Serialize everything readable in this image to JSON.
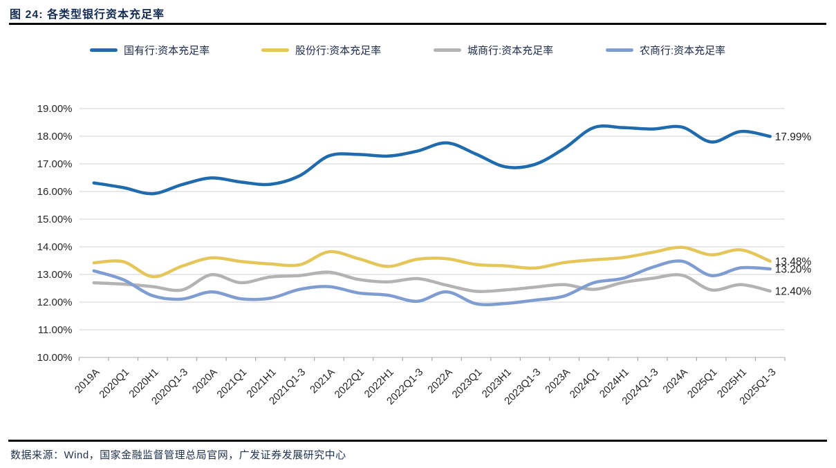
{
  "figure": {
    "title": "图 24: 各类型银行资本充足率",
    "source": "数据来源：Wind，国家金融监督管理总局官网，广发证券发展研究中心"
  },
  "legend": [
    {
      "label": "国有行:资本充足率",
      "color": "#1F6BAD"
    },
    {
      "label": "股份行:资本充足率",
      "color": "#E4C65B"
    },
    {
      "label": "城商行:资本充足率",
      "color": "#B3B3B3"
    },
    {
      "label": "农商行:资本充足率",
      "color": "#7F9DD1"
    }
  ],
  "chart_data": {
    "type": "line",
    "title": "各类型银行资本充足率",
    "xlabel": "",
    "ylabel": "",
    "unit": "%",
    "ylim": [
      10,
      19
    ],
    "ytick_step": 1,
    "grid": "horizontal",
    "legend_position": "top",
    "smooth": true,
    "ytick_labels": [
      "19.00%",
      "18.00%",
      "17.00%",
      "16.00%",
      "15.00%",
      "14.00%",
      "13.00%",
      "12.00%",
      "11.00%",
      "10.00%"
    ],
    "categories": [
      "2019A",
      "2020Q1",
      "2020H1",
      "2020Q1-3",
      "2020A",
      "2021Q1",
      "2021H1",
      "2021Q1-3",
      "2021A",
      "2022Q1",
      "2022H1",
      "2022Q1-3",
      "2022A",
      "2023Q1",
      "2023H1",
      "2023Q1-3",
      "2023A",
      "2024Q1",
      "2024H1",
      "2024Q1-3",
      "2024A",
      "2025Q1",
      "2025H1",
      "2025Q1-3"
    ],
    "series": [
      {
        "name": "国有行:资本充足率",
        "color": "#1F6BAD",
        "end_label": "17.99%",
        "values": [
          16.31,
          16.14,
          15.92,
          16.25,
          16.49,
          16.34,
          16.26,
          16.57,
          17.29,
          17.34,
          17.28,
          17.46,
          17.76,
          17.35,
          16.89,
          16.98,
          17.56,
          18.31,
          18.31,
          18.26,
          18.33,
          17.79,
          18.17,
          17.99
        ]
      },
      {
        "name": "股份行:资本充足率",
        "color": "#E4C65B",
        "end_label": "13.48%",
        "values": [
          13.42,
          13.46,
          12.92,
          13.3,
          13.6,
          13.47,
          13.38,
          13.35,
          13.82,
          13.57,
          13.29,
          13.55,
          13.57,
          13.36,
          13.31,
          13.23,
          13.43,
          13.53,
          13.61,
          13.8,
          13.98,
          13.71,
          13.89,
          13.48
        ]
      },
      {
        "name": "城商行:资本充足率",
        "color": "#B3B3B3",
        "end_label": "12.40%",
        "values": [
          12.7,
          12.65,
          12.56,
          12.44,
          12.99,
          12.7,
          12.91,
          12.96,
          13.08,
          12.82,
          12.73,
          12.85,
          12.61,
          12.39,
          12.44,
          12.54,
          12.63,
          12.46,
          12.71,
          12.86,
          12.97,
          12.44,
          12.63,
          12.4
        ]
      },
      {
        "name": "农商行:资本充足率",
        "color": "#7F9DD1",
        "end_label": "13.20%",
        "values": [
          13.13,
          12.81,
          12.23,
          12.11,
          12.37,
          12.12,
          12.14,
          12.46,
          12.56,
          12.33,
          12.25,
          12.03,
          12.37,
          11.94,
          11.95,
          12.07,
          12.22,
          12.7,
          12.86,
          13.26,
          13.48,
          12.96,
          13.24,
          13.2
        ]
      }
    ]
  }
}
